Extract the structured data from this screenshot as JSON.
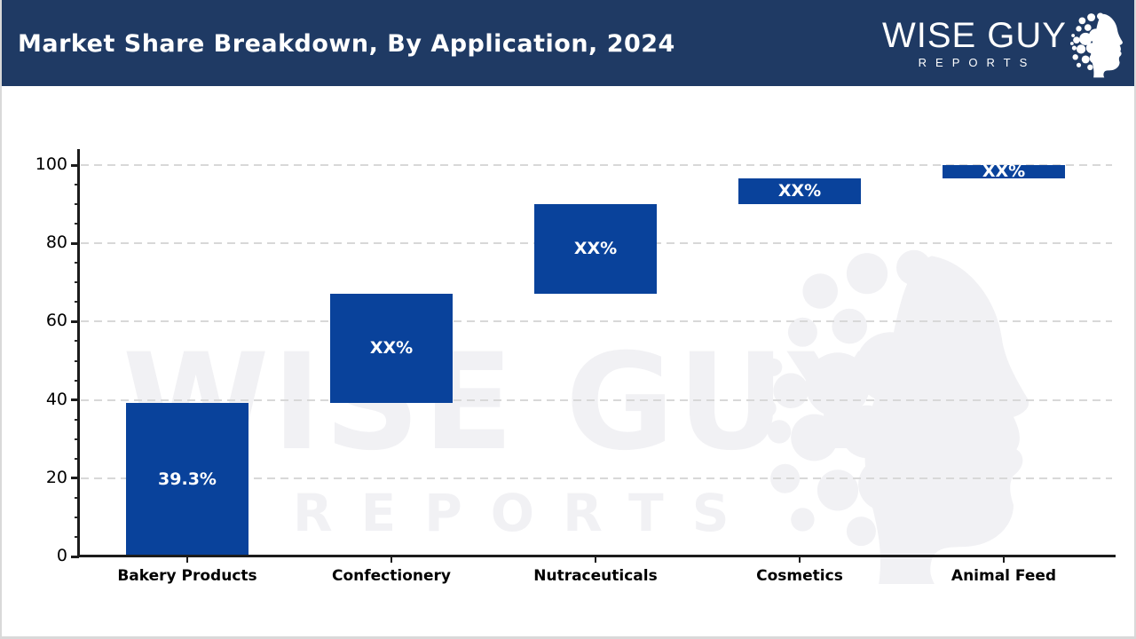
{
  "header": {
    "title": "Market Share Breakdown, By Application, 2024",
    "bg_color": "#1f3a64",
    "logo": {
      "line1": "WISE GUY",
      "line2": "REPORTS"
    }
  },
  "watermark": {
    "line1": "WISE GUY",
    "line2": "REPORTS"
  },
  "chart_data": {
    "type": "bar",
    "subtype": "waterfall",
    "title": "Market Share Breakdown, By Application, 2024",
    "categories": [
      "Bakery Products",
      "Confectionery",
      "Nutraceuticals",
      "Cosmetics",
      "Animal Feed"
    ],
    "series": [
      {
        "name": "Market Share",
        "segments": [
          {
            "category": "Bakery Products",
            "start": 0,
            "end": 39.3,
            "label": "39.3%"
          },
          {
            "category": "Confectionery",
            "start": 39.3,
            "end": 67.1,
            "label": "XX%"
          },
          {
            "category": "Nutraceuticals",
            "start": 67.1,
            "end": 90.0,
            "label": "XX%"
          },
          {
            "category": "Cosmetics",
            "start": 90.0,
            "end": 96.7,
            "label": "XX%"
          },
          {
            "category": "Animal Feed",
            "start": 96.7,
            "end": 100.0,
            "label": "XX%"
          }
        ]
      }
    ],
    "bar_color": "#09429b",
    "bar_label_color": "#ffffff",
    "xlabel": "",
    "ylabel": "",
    "ylim": [
      0,
      100
    ],
    "yticks": [
      0,
      20,
      40,
      60,
      80,
      100
    ],
    "minor_tick_step": 5,
    "grid": "horizontal-dashed",
    "grid_color": "#d8d8d8",
    "legend": "none"
  }
}
